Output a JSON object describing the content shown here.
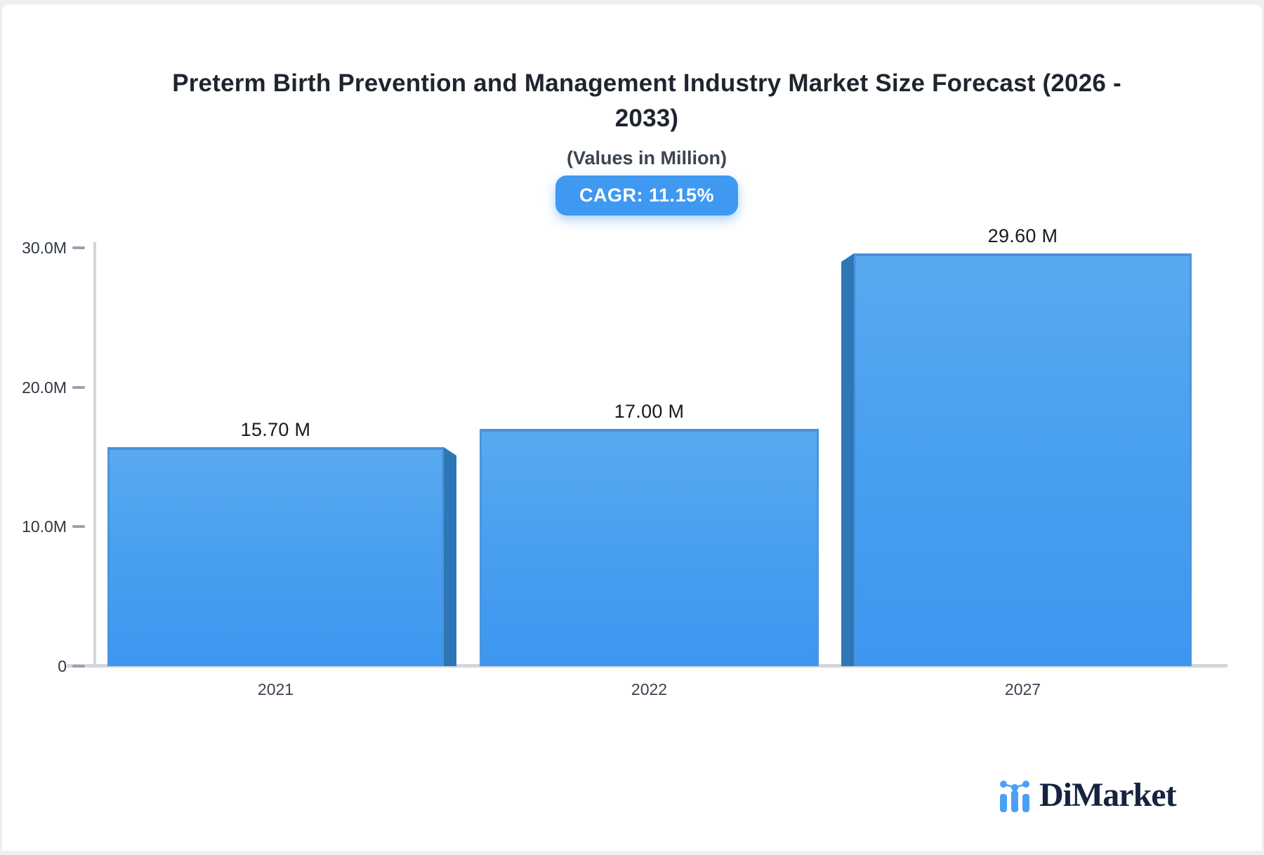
{
  "header": {
    "title_line1": "Preterm Birth Prevention and Management Industry Market Size Forecast (2026 -",
    "title_line2": "2033)",
    "subtitle": "(Values in Million)",
    "cagr_badge": "CAGR: 11.15%"
  },
  "chart_data": {
    "type": "bar",
    "title": "Preterm Birth Prevention and Management Industry Market Size Forecast (2026 - 2033)",
    "subtitle": "(Values in Million)",
    "cagr_label": "CAGR: 11.15%",
    "cagr_percent": 11.15,
    "unit": "Million",
    "categories": [
      "2021",
      "2022",
      "2027"
    ],
    "values": [
      15.7,
      17.0,
      29.6
    ],
    "value_labels": [
      "15.70 M",
      "17.00 M",
      "29.60 M"
    ],
    "y_ticks": [
      {
        "value": 0,
        "label": "0"
      },
      {
        "value": 10,
        "label": "10.0M"
      },
      {
        "value": 20,
        "label": "20.0M"
      },
      {
        "value": 30,
        "label": "30.0M"
      }
    ],
    "ylim": [
      0,
      30
    ],
    "grid": false,
    "legend": false,
    "colors": {
      "bar_gradient_top": "#59a9f0",
      "bar_gradient_bottom": "#3d96f0",
      "bar_side_3d": "#2d77b7",
      "axis_line": "#d3d6dc",
      "tick_dash": "#9aa2ad",
      "badge_background": "#3f99f0"
    }
  },
  "logo": {
    "text": "DiMarket",
    "icon": "bar-line-chart-icon",
    "icon_color": "#4aa0f6",
    "text_color": "#15233f"
  }
}
